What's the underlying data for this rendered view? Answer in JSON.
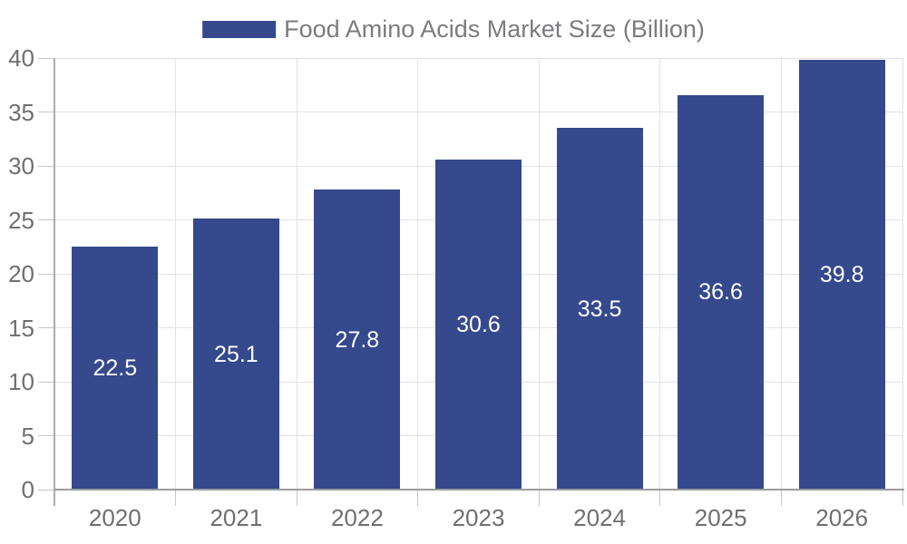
{
  "chart_data": {
    "type": "bar",
    "title": "Food Amino Acids Market Size (Billion)",
    "categories": [
      "2020",
      "2021",
      "2022",
      "2023",
      "2024",
      "2025",
      "2026"
    ],
    "values": [
      22.5,
      25.1,
      27.8,
      30.6,
      33.5,
      36.6,
      39.8
    ],
    "series": [
      {
        "name": "Food Amino Acids Market Size (Billion)",
        "values": [
          22.5,
          25.1,
          27.8,
          30.6,
          33.5,
          36.6,
          39.8
        ]
      }
    ],
    "yticks": [
      0,
      5,
      10,
      15,
      20,
      25,
      30,
      35,
      40
    ],
    "ylim": [
      0,
      40
    ],
    "grid": true,
    "legend_position": "top-center",
    "bar_labels_inside": true,
    "colors": {
      "bar": "#35498C",
      "bar_label": "#FFFFFF",
      "gridline": "#E1E2E9",
      "tick": "#C4C6CE",
      "axis_line_bottom": "#9B9B9F",
      "axis_line_left": "#ACACB2",
      "tick_label": "#6F6F73",
      "legend_text": "#7B7B80",
      "background": "#FFFFFF"
    }
  }
}
